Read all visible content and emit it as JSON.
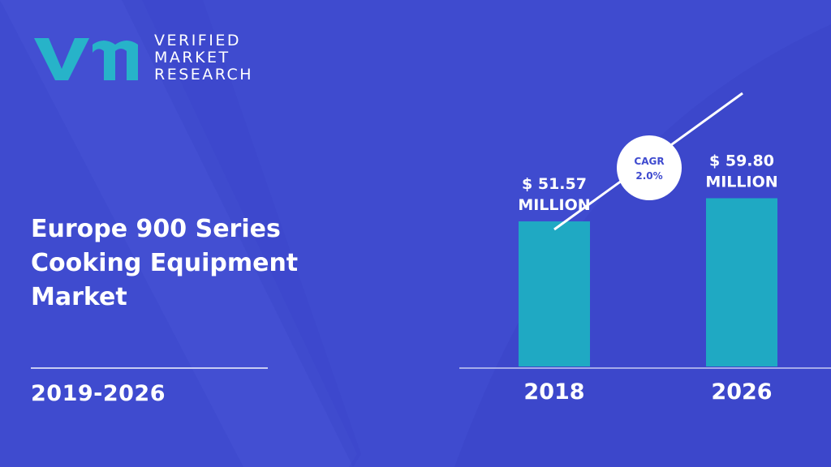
{
  "brand": {
    "logo_lines": [
      "VERIFIED",
      "MARKET",
      "RESEARCH"
    ],
    "colors": {
      "background": "#3f4bcf",
      "bar": "#1fa9c3",
      "logo_mark": "#27b3c9",
      "text": "#ffffff"
    }
  },
  "title_lines": [
    "Europe 900 Series",
    "Cooking Equipment",
    "Market"
  ],
  "period": "2019-2026",
  "cagr": {
    "label": "CAGR",
    "value": "2.0%"
  },
  "chart_data": {
    "type": "bar",
    "categories": [
      "2018",
      "2026"
    ],
    "values": [
      51.57,
      59.8
    ],
    "value_labels": [
      {
        "line1": "$ 51.57",
        "line2": "MILLION"
      },
      {
        "line1": "$ 59.80",
        "line2": "MILLION"
      }
    ],
    "unit": "USD Million",
    "title": "",
    "xlabel": "",
    "ylabel": "",
    "grid": false,
    "legend": "none"
  }
}
